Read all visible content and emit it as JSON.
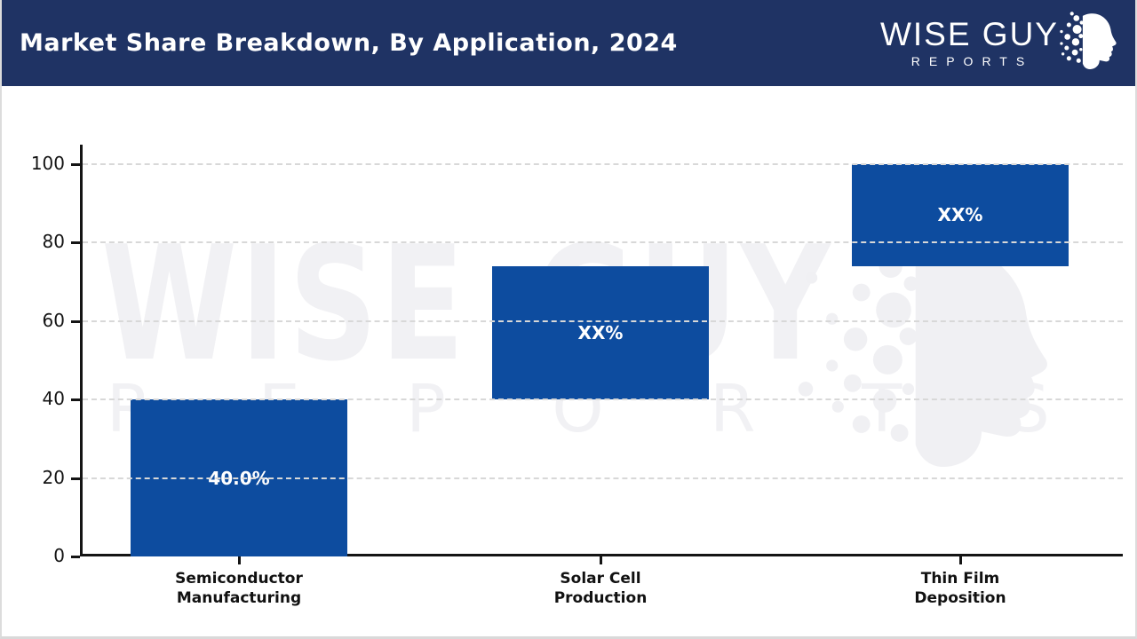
{
  "header": {
    "title": "Market Share Breakdown, By Application, 2024",
    "logo": {
      "line1": "WISE GUY",
      "line2": "REPORTS"
    }
  },
  "watermark": {
    "line1": "WISE GUY",
    "line2": "R E P O R T S"
  },
  "chart_data": {
    "type": "bar",
    "subtype": "waterfall-floating-segments",
    "title": "Market Share Breakdown, By Application, 2024",
    "categories": [
      "Semiconductor\nManufacturing",
      "Solar Cell\nProduction",
      "Thin Film\nDeposition"
    ],
    "segments": [
      {
        "category": "Semiconductor Manufacturing",
        "start": 0,
        "end": 40,
        "label": "40.0%"
      },
      {
        "category": "Solar Cell Production",
        "start": 40,
        "end": 74,
        "label": "XX%"
      },
      {
        "category": "Thin Film Deposition",
        "start": 74,
        "end": 100,
        "label": "XX%"
      }
    ],
    "values": [
      40,
      34,
      26
    ],
    "xlabel": "",
    "ylabel": "",
    "ylim": [
      0,
      100
    ],
    "yticks": [
      0,
      20,
      40,
      60,
      80,
      100
    ],
    "grid": "horizontal-dashed",
    "legend": "none",
    "bar_color": "#0d4c9f",
    "bar_label_color": "#ffffff"
  },
  "colors": {
    "header_bg": "#1f3364",
    "bar": "#0d4c9f",
    "grid": "#d8d8d8",
    "axis": "#141414",
    "watermark": "#f1f1f4",
    "frame_border": "#d9d9d9"
  }
}
